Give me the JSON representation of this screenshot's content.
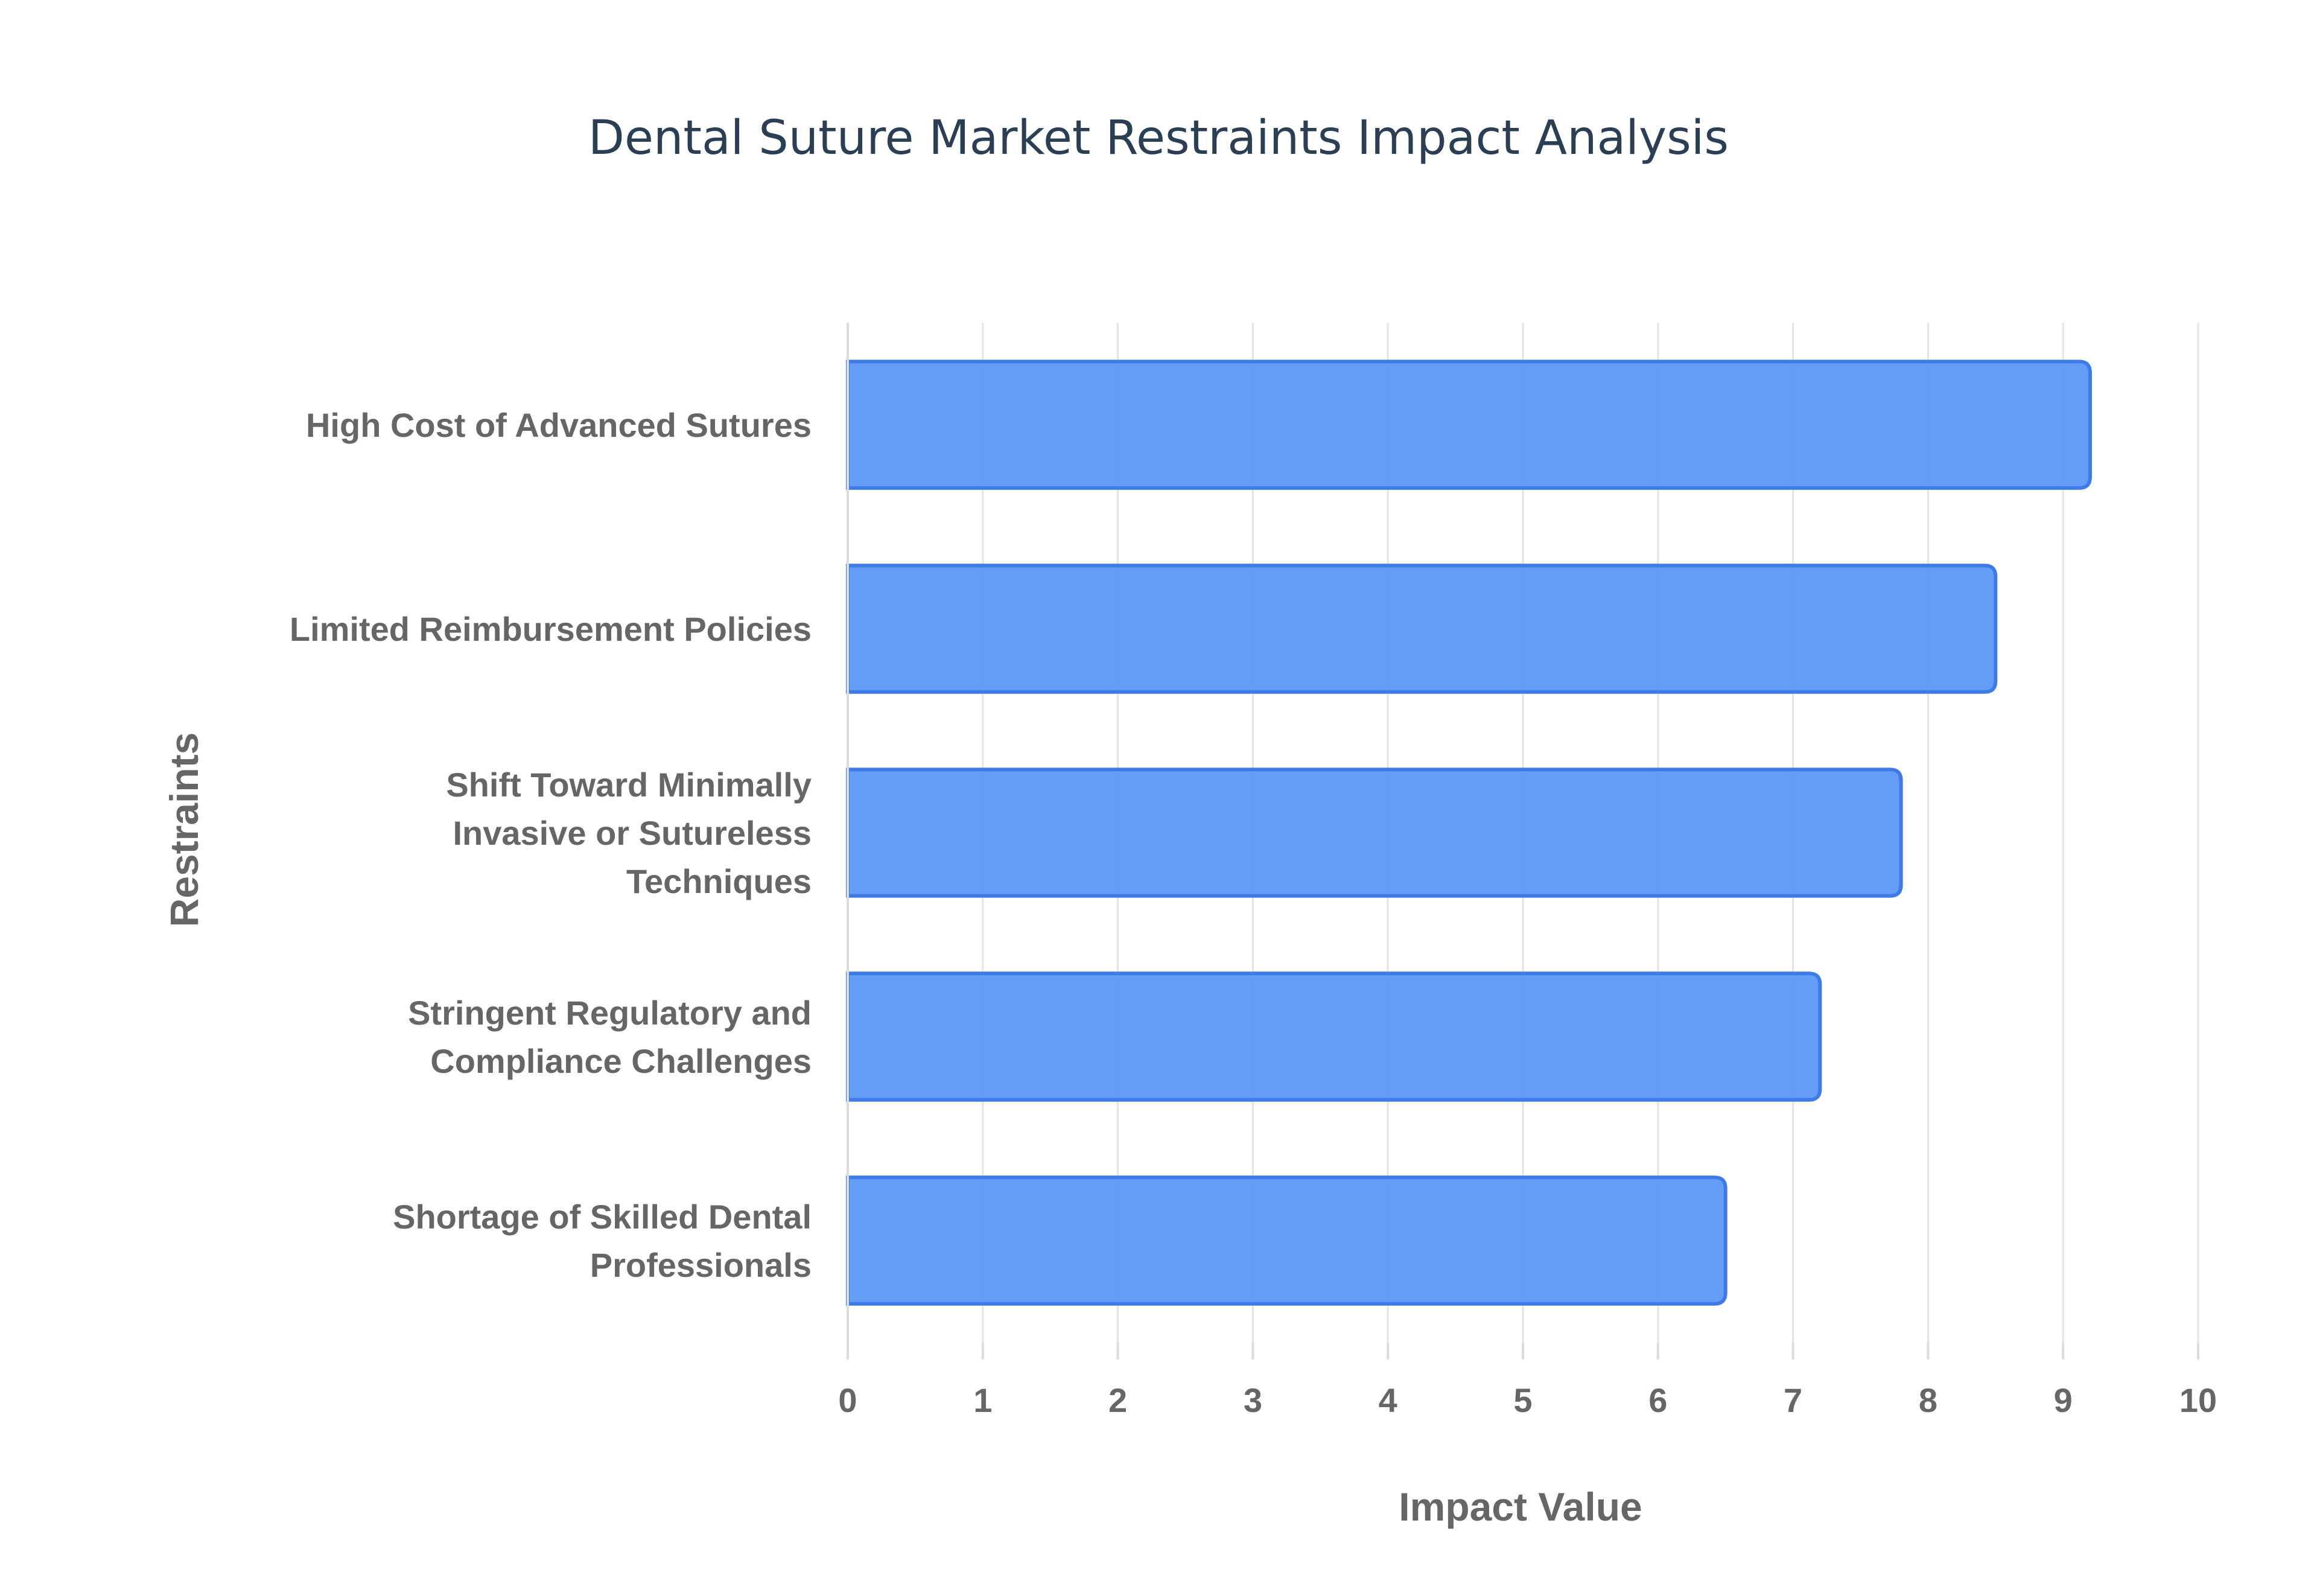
{
  "chart_data": {
    "type": "bar",
    "orientation": "horizontal",
    "title": "Dental Suture Market Restraints Impact Analysis",
    "xlabel": "Impact Value",
    "ylabel": "Restraints",
    "xlim": [
      0,
      10
    ],
    "xticks": [
      "0",
      "1",
      "2",
      "3",
      "4",
      "5",
      "6",
      "7",
      "8",
      "9",
      "10"
    ],
    "grid": true,
    "legend": "none",
    "bar_color": "#5c97f5",
    "bar_border_color": "#3c7be8",
    "categories": [
      [
        "High Cost of Advanced Sutures"
      ],
      [
        "Limited Reimbursement Policies"
      ],
      [
        "Shift Toward Minimally",
        "Invasive or Sutureless",
        "Techniques"
      ],
      [
        "Stringent Regulatory and",
        "Compliance Challenges"
      ],
      [
        "Shortage of Skilled Dental",
        "Professionals"
      ]
    ],
    "values": [
      9.2,
      8.5,
      7.8,
      7.2,
      6.5
    ]
  }
}
